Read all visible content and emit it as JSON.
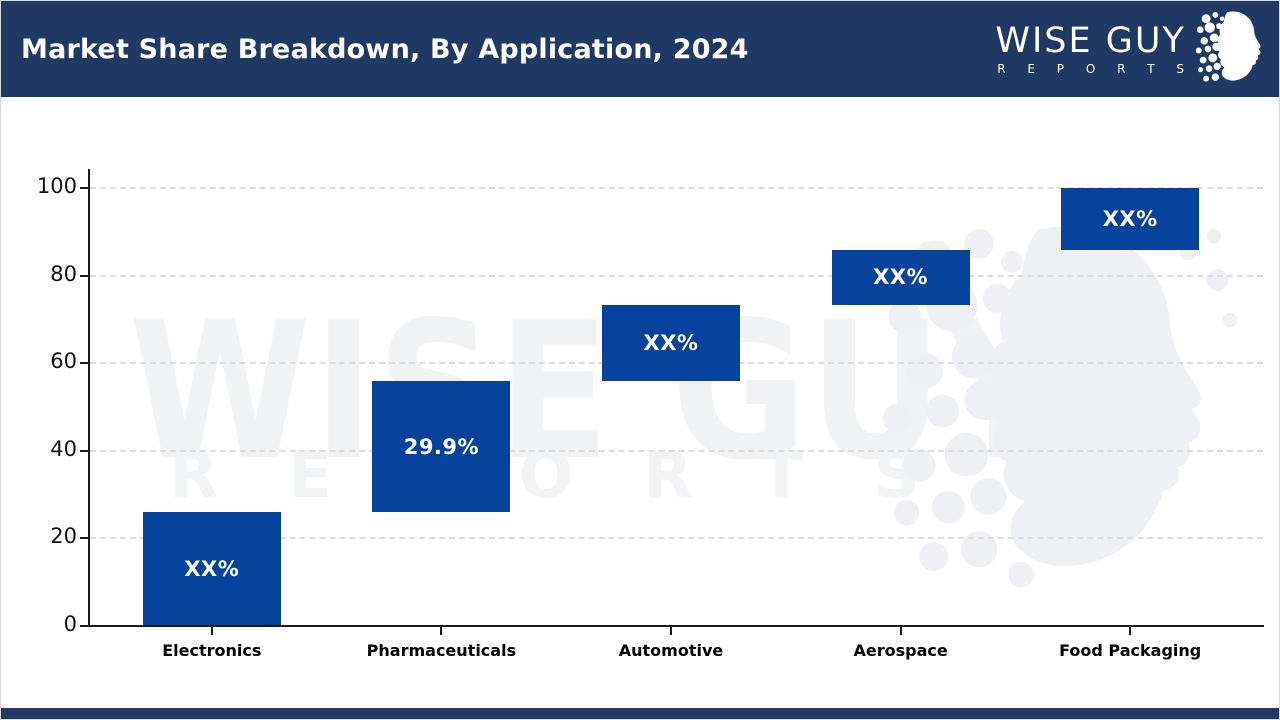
{
  "header": {
    "title": "Market Share Breakdown, By Application, 2024",
    "bg_color": "#1f3864",
    "logo": {
      "line1": "WISE GUY",
      "line2": "R E P O R T S"
    }
  },
  "watermark": {
    "line1": "WISE GUY",
    "line2": "REPORTS"
  },
  "footer": {
    "bg_color": "#1f3864"
  },
  "chart_data": {
    "type": "bar",
    "subtype": "waterfall-floating-bars",
    "title": "Market Share Breakdown, By Application, 2024",
    "xlabel": "",
    "ylabel": "",
    "ylim": [
      0,
      100
    ],
    "yticks": [
      0,
      20,
      40,
      60,
      80,
      100
    ],
    "grid": "dashed-horizontal",
    "legend": "none",
    "bar_color": "#07439c",
    "bar_label_color": "#ffffff",
    "categories": [
      "Electronics",
      "Pharmaceuticals",
      "Automotive",
      "Aerospace",
      "Food Packaging"
    ],
    "segments": [
      {
        "category": "Electronics",
        "start": 0,
        "end": 26.0,
        "value": 26.0,
        "label": "XX%"
      },
      {
        "category": "Pharmaceuticals",
        "start": 26.0,
        "end": 55.9,
        "value": 29.9,
        "label": "29.9%"
      },
      {
        "category": "Automotive",
        "start": 55.9,
        "end": 73.4,
        "value": 17.5,
        "label": "XX%"
      },
      {
        "category": "Aerospace",
        "start": 73.4,
        "end": 86.0,
        "value": 12.6,
        "label": "XX%"
      },
      {
        "category": "Food Packaging",
        "start": 86.0,
        "end": 100.0,
        "value": 14.0,
        "label": "XX%"
      }
    ]
  }
}
